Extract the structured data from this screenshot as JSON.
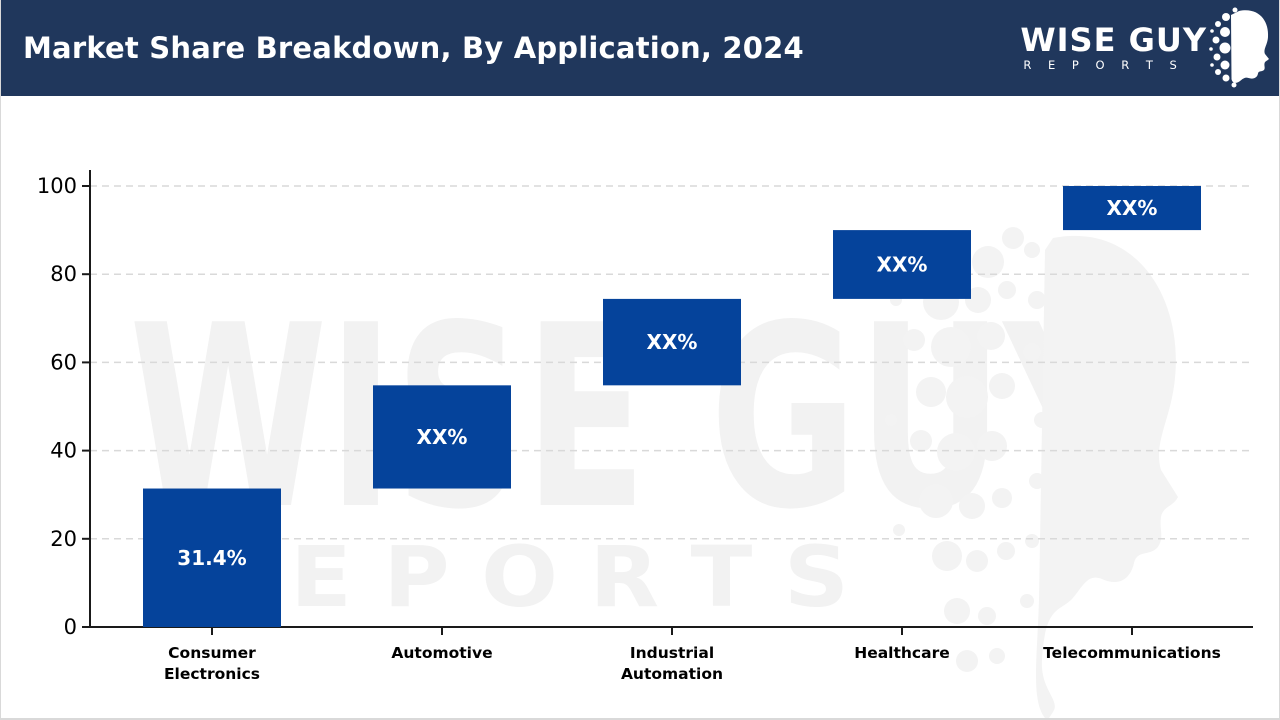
{
  "header": {
    "title": "Market Share Breakdown, By Application, 2024",
    "logo_line1": "WISE GUY",
    "logo_line2": "R E P O R T S"
  },
  "watermark": {
    "line1": "WISE GUY",
    "line2": "R E P O R T S"
  },
  "colors": {
    "header_bg": "#20375c",
    "bar": "#05439b",
    "bar_label": "#ffffff",
    "grid": "#d9d9d9",
    "axis": "#1a1a1a",
    "tick_label": "#000000",
    "watermark": "#f2f2f2"
  },
  "chart_data": {
    "type": "bar",
    "subtype": "floating-waterfall",
    "title": "Market Share Breakdown, By Application, 2024",
    "categories": [
      "Consumer Electronics",
      "Automotive",
      "Industrial Automation",
      "Healthcare",
      "Telecommunications"
    ],
    "segments": [
      {
        "category": "Consumer Electronics",
        "start": 0,
        "end": 31.4,
        "label": "31.4%"
      },
      {
        "category": "Automotive",
        "start": 31.4,
        "end": 54.8,
        "label": "XX%"
      },
      {
        "category": "Industrial Automation",
        "start": 54.8,
        "end": 74.4,
        "label": "XX%"
      },
      {
        "category": "Healthcare",
        "start": 74.4,
        "end": 90,
        "label": "XX%"
      },
      {
        "category": "Telecommunications",
        "start": 90,
        "end": 100,
        "label": "XX%"
      }
    ],
    "yticks": [
      0,
      20,
      40,
      60,
      80,
      100
    ],
    "ylim": [
      0,
      103.6
    ],
    "xlabel": "",
    "ylabel": "",
    "grid": "horizontal-dashed",
    "legend": null
  }
}
